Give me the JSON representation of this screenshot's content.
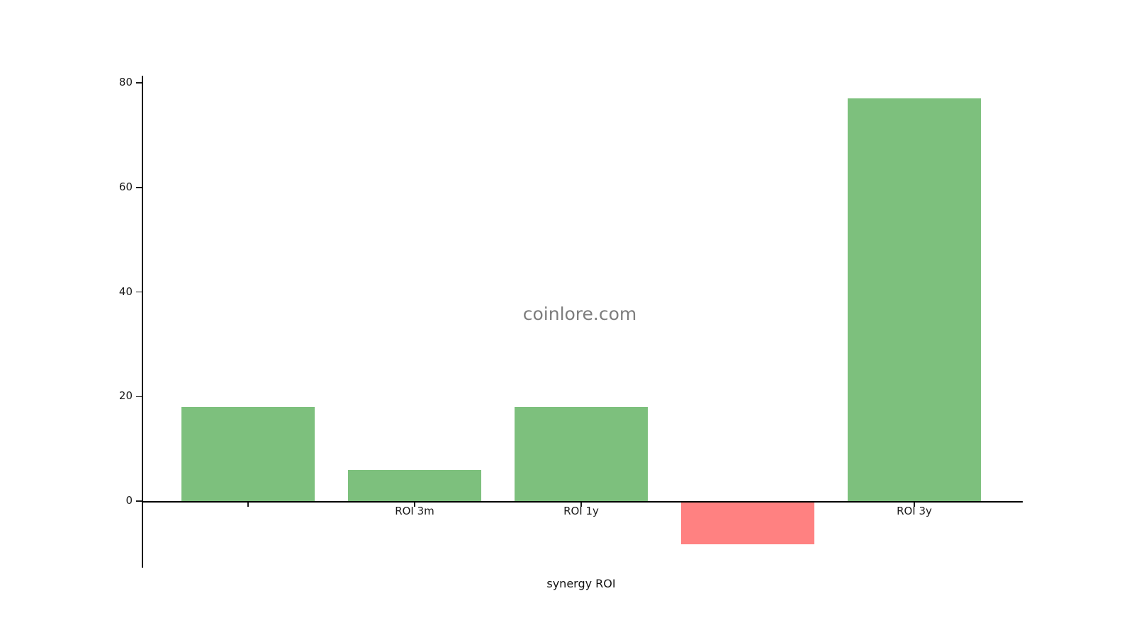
{
  "page": {
    "background": "#ffffff"
  },
  "watermark": {
    "text": "coinlore.com",
    "color": "#7d7d7d"
  },
  "chart_data": {
    "type": "bar",
    "title": "",
    "xlabel": "synergy ROI",
    "ylabel": "",
    "categories": [
      "",
      "ROI 3m",
      "ROI 1y",
      "",
      "ROI 3y"
    ],
    "values": [
      18,
      6,
      18,
      -8,
      77
    ],
    "bar_colors": [
      "#7dc07d",
      "#7dc07d",
      "#7dc07d",
      "#ff8181",
      "#7dc07d"
    ],
    "positive_color": "#7dc07d",
    "negative_color": "#ff8181",
    "y_ticks": [
      0,
      20,
      40,
      60,
      80
    ],
    "ylim": [
      -12.6,
      81.5
    ],
    "grid": false,
    "legend": "none",
    "annotations": [
      "coinlore.com"
    ]
  }
}
